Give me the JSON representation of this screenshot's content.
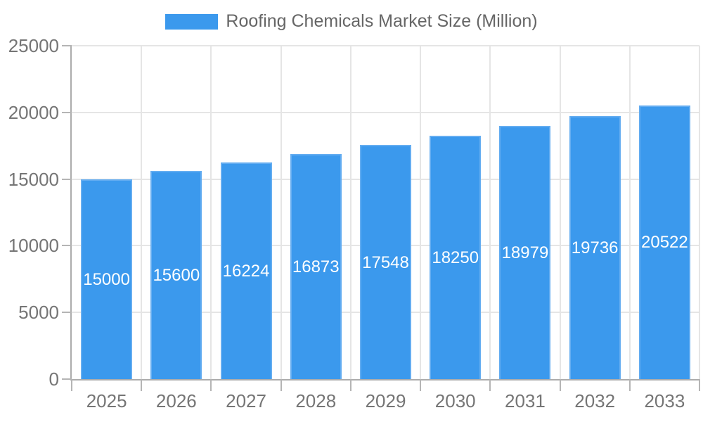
{
  "chart_data": {
    "type": "bar",
    "title": "Roofing Chemicals Market Size (Million)",
    "legend": {
      "position": "top",
      "label": "Roofing Chemicals Market Size (Million)"
    },
    "categories": [
      "2025",
      "2026",
      "2027",
      "2028",
      "2029",
      "2030",
      "2031",
      "2032",
      "2033"
    ],
    "series": [
      {
        "name": "Roofing Chemicals Market Size (Million)",
        "values": [
          15000,
          15600,
          16224,
          16873,
          17548,
          18250,
          18979,
          19736,
          20522
        ]
      }
    ],
    "xlabel": "",
    "ylabel": "",
    "ylim": [
      0,
      25000
    ],
    "ytick_step": 5000,
    "yticks": [
      0,
      5000,
      10000,
      15000,
      20000,
      25000
    ],
    "grid": true,
    "bar_labels_visible": true,
    "colors": {
      "bar_fill": "#3b99ed",
      "bar_border": "#64adf1",
      "gridline": "#e5e5e5",
      "axis_line": "#acacac",
      "tick_label": "#757575",
      "legend_text": "#666666",
      "bar_value_label": "#ffffff",
      "background": "#ffffff"
    }
  }
}
